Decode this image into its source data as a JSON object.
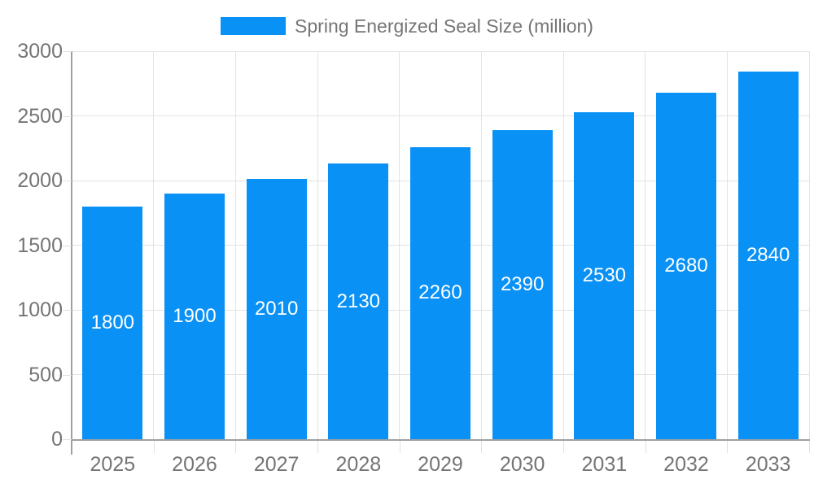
{
  "chart_data": {
    "type": "bar",
    "title": "Spring Energized Seal Size (million)",
    "categories": [
      "2025",
      "2026",
      "2027",
      "2028",
      "2029",
      "2030",
      "2031",
      "2032",
      "2033"
    ],
    "series": [
      {
        "name": "Spring Energized Seal Size (million)",
        "values": [
          1800,
          1900,
          2010,
          2130,
          2260,
          2390,
          2530,
          2680,
          2840
        ]
      }
    ],
    "xlabel": "",
    "ylabel": "",
    "ylim": [
      0,
      3000
    ],
    "yticks": [
      0,
      500,
      1000,
      1500,
      2000,
      2500,
      3000
    ],
    "grid": true,
    "bar_value_labels": true,
    "legend_position": "top-center",
    "colors": {
      "bar": "#0991F6",
      "bar_value_text": "#FFFFFF",
      "axis_text": "#757575",
      "grid_line": "#E3E3E3",
      "axis_line": "#A0A0A0",
      "tick_line": "#E0E0E0",
      "background": "#FFFFFF"
    }
  }
}
